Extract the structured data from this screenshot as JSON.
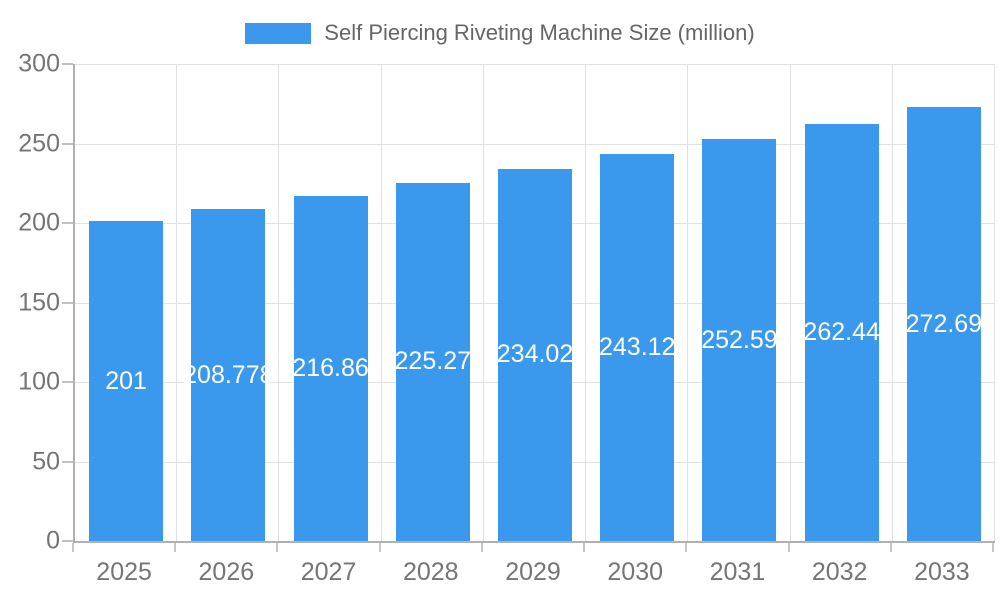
{
  "colors": {
    "bar": "#3a99ec",
    "grid": "#e2e2e2",
    "axis": "#b1b1b1",
    "tick": "#c6c6c6",
    "axis_text": "#757575",
    "legend_text": "#666666",
    "bar_label_text": "#ffffff",
    "background": "#ffffff"
  },
  "legend": {
    "label": "Self Piercing Riveting Machine Size (million)",
    "swatch": "blue-rect"
  },
  "chart_data": {
    "type": "bar",
    "title": "Self Piercing Riveting Machine Size (million)",
    "xlabel": "",
    "ylabel": "",
    "categories": [
      "2025",
      "2026",
      "2027",
      "2028",
      "2029",
      "2030",
      "2031",
      "2032",
      "2033"
    ],
    "values": [
      201,
      208.778,
      216.86,
      225.27,
      234.02,
      243.12,
      252.59,
      262.44,
      272.69
    ],
    "value_labels": [
      "201",
      "208.778",
      "216.86",
      "225.27",
      "234.02",
      "243.12",
      "252.59",
      "262.44",
      "272.69"
    ],
    "series": [
      {
        "name": "Self Piercing Riveting Machine Size (million)",
        "values": [
          201,
          208.778,
          216.86,
          225.27,
          234.02,
          243.12,
          252.59,
          262.44,
          272.69
        ]
      }
    ],
    "ylim": [
      0,
      300
    ],
    "y_ticks": [
      0,
      50,
      100,
      150,
      200,
      250,
      300
    ],
    "grid": true,
    "legend_position": "top",
    "bar_labels_position": "center-inside",
    "bar_color": "#3a99ec"
  }
}
